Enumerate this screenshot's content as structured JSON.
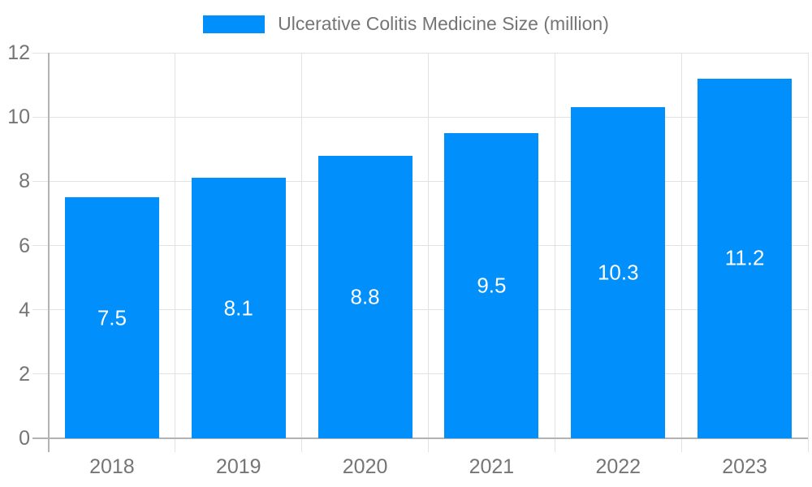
{
  "legend": {
    "label": "Ulcerative Colitis Medicine Size (million)"
  },
  "chart_data": {
    "type": "bar",
    "title": "",
    "xlabel": "",
    "ylabel": "",
    "categories": [
      "2018",
      "2019",
      "2020",
      "2021",
      "2022",
      "2023"
    ],
    "series": [
      {
        "name": "Ulcerative Colitis Medicine Size (million)",
        "values": [
          7.5,
          8.1,
          8.8,
          9.5,
          10.3,
          11.2
        ],
        "data_labels": [
          "7.5",
          "8.1",
          "8.8",
          "9.5",
          "10.3",
          "11.2"
        ]
      }
    ],
    "ylim": [
      0,
      12
    ],
    "yticks": [
      0,
      2,
      4,
      6,
      8,
      10,
      12
    ],
    "grid": true,
    "legend_position": "top-center"
  },
  "colors": {
    "bar": "#008FFB",
    "bar_label": "#ffffff",
    "axis_label": "#757575",
    "gridline": "#e2e2e2",
    "axis_line": "#b3b3b3",
    "background": "#ffffff"
  }
}
